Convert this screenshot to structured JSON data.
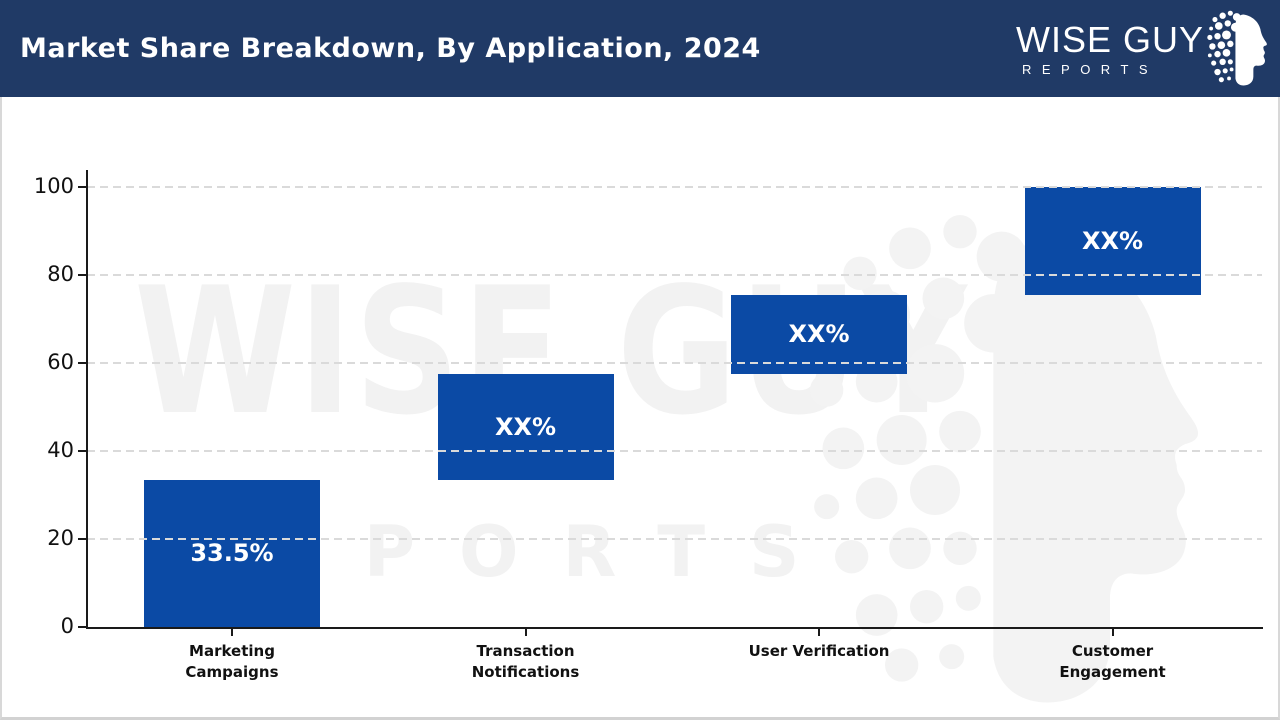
{
  "header": {
    "title": "Market Share Breakdown, By Application, 2024",
    "brand": {
      "name": "WISE GUY",
      "sub": "REPORTS"
    },
    "bg_color": "#203a66"
  },
  "watermark": {
    "line1": "WISE GUY",
    "line2": "REPORTS"
  },
  "chart_data": {
    "type": "bar",
    "subtype": "waterfall",
    "title": "Market Share Breakdown, By Application, 2024",
    "categories": [
      "Marketing\nCampaigns",
      "Transaction\nNotifications",
      "User Verification",
      "Customer\nEngagement"
    ],
    "segments": [
      {
        "category": "Marketing Campaigns",
        "start": 0,
        "end": 33.5,
        "value": 33.5,
        "label": "33.5%"
      },
      {
        "category": "Transaction Notifications",
        "start": 33.5,
        "end": 57.5,
        "value": null,
        "label": "XX%"
      },
      {
        "category": "User Verification",
        "start": 57.5,
        "end": 75.5,
        "value": null,
        "label": "XX%"
      },
      {
        "category": "Customer Engagement",
        "start": 75.5,
        "end": 100,
        "value": null,
        "label": "XX%"
      }
    ],
    "y_ticks": [
      0,
      20,
      40,
      60,
      80,
      100
    ],
    "ylim": [
      0,
      104
    ],
    "xlabel": "",
    "ylabel": "",
    "bar_color": "#0b4aa5",
    "axis_color": "#1a1a1a",
    "grid": "horizontal-dashed",
    "gridline_color": "#dadada",
    "legend": "none"
  }
}
